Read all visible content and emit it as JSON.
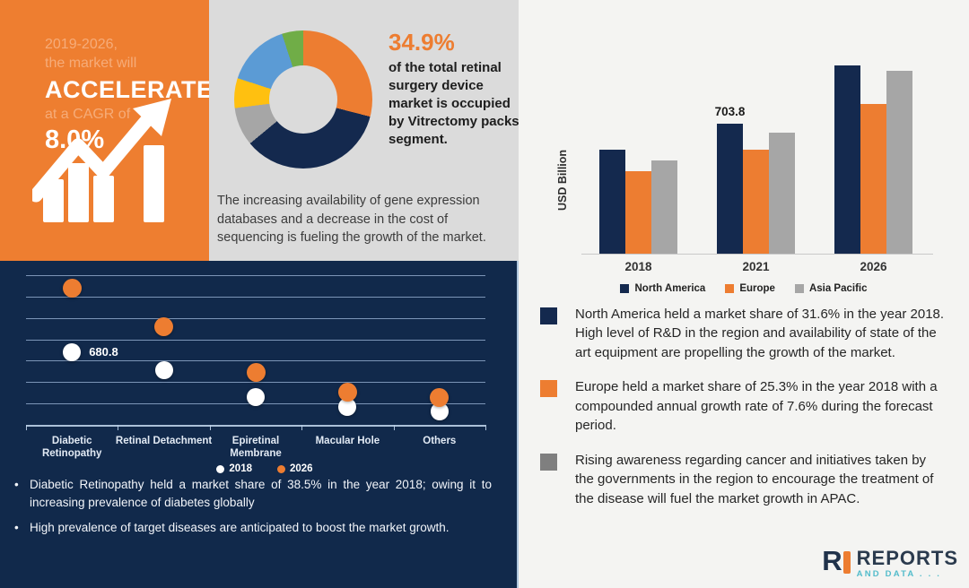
{
  "accelerate_card": {
    "range": "2019-2026,",
    "line2": "the market will",
    "accent": "ACCELERATE",
    "line4": "at a CAGR of",
    "cagr": "8.0%"
  },
  "donut_card": {
    "stat_value": "34.9%",
    "stat_text": "of the total retinal surgery device market is occupied by Vitrectomy packs segment.",
    "body_text": "The increasing availability of gene expression databases and a decrease in the cost of sequencing is fueling the growth of the market."
  },
  "chart_data": [
    {
      "id": "segment-share-donut",
      "type": "pie",
      "donut": true,
      "highlight": {
        "label": "Vitrectomy packs",
        "share_pct": 34.9
      },
      "segments": [
        {
          "color": "#ED7D31",
          "value": 29
        },
        {
          "color": "#14294E",
          "value": 35
        },
        {
          "color": "#A6A6A6",
          "value": 9
        },
        {
          "color": "#FFC010",
          "value": 7
        },
        {
          "color": "#5B9BD5",
          "value": 15
        },
        {
          "color": "#70AD47",
          "value": 5
        }
      ]
    },
    {
      "id": "regional-market-bar",
      "type": "bar",
      "ylabel": "USD Billion",
      "categories": [
        "2018",
        "2021",
        "2026"
      ],
      "ylim": [
        0,
        1100
      ],
      "legend_position": "bottom",
      "series": [
        {
          "name": "North America",
          "color": "#14294E",
          "values": [
            560,
            703.8,
            1020
          ]
        },
        {
          "name": "Europe",
          "color": "#ED7D31",
          "values": [
            445,
            560,
            810
          ]
        },
        {
          "name": "Asia Pacific",
          "color": "#A6A6A6",
          "values": [
            505,
            655,
            990
          ]
        }
      ],
      "data_labels": [
        {
          "series": 0,
          "category": "2021",
          "text": "703.8"
        }
      ]
    },
    {
      "id": "indication-dot-plot",
      "type": "scatter",
      "categories": [
        "Diabetic Retinopathy",
        "Retinal Detachment",
        "Epiretinal Membrane",
        "Macular Hole",
        "Others"
      ],
      "ylim": [
        0,
        1400
      ],
      "grid_step": 200,
      "grid": true,
      "legend_position": "bottom",
      "series": [
        {
          "name": "2018",
          "color": "#FFFFFF",
          "values": [
            680.8,
            515,
            260,
            165,
            130
          ]
        },
        {
          "name": "2026",
          "color": "#ED7D31",
          "values": [
            1280,
            920,
            490,
            305,
            260
          ]
        }
      ],
      "data_labels": [
        {
          "series": 0,
          "category": "Diabetic Retinopathy",
          "text": "680.8"
        }
      ]
    }
  ],
  "navy_panel": {
    "bullets": [
      "Diabetic Retinopathy held a market share of 38.5% in the year 2018; owing it to increasing prevalence of diabetes globally",
      "High prevalence of target diseases are anticipated to boost the market growth."
    ]
  },
  "right_panel": {
    "bullets": [
      {
        "color": "#14294E",
        "text": "North America held a market share of 31.6% in the year 2018. High level of R&D in the region and availability of state of the art equipment are propelling the growth of the market."
      },
      {
        "color": "#ED7D31",
        "text": "Europe held a market share of 25.3% in the year 2018 with a compounded annual growth rate of 7.6% during the forecast period."
      },
      {
        "color": "#7F7F7F",
        "text": "Rising awareness regarding cancer and initiatives taken by the governments in the region to encourage the treatment of the disease will fuel the market growth in APAC."
      }
    ]
  },
  "logo": {
    "icon_letter": "R",
    "name": "REPORTS",
    "tagline": "AND DATA . . ."
  },
  "colors": {
    "orange": "#EE7E30",
    "navy": "#11294B",
    "bar_navy": "#14294E",
    "card_gray": "#DBDBDB",
    "right_bg": "#F4F4F2",
    "teal": "#53BCCB"
  }
}
